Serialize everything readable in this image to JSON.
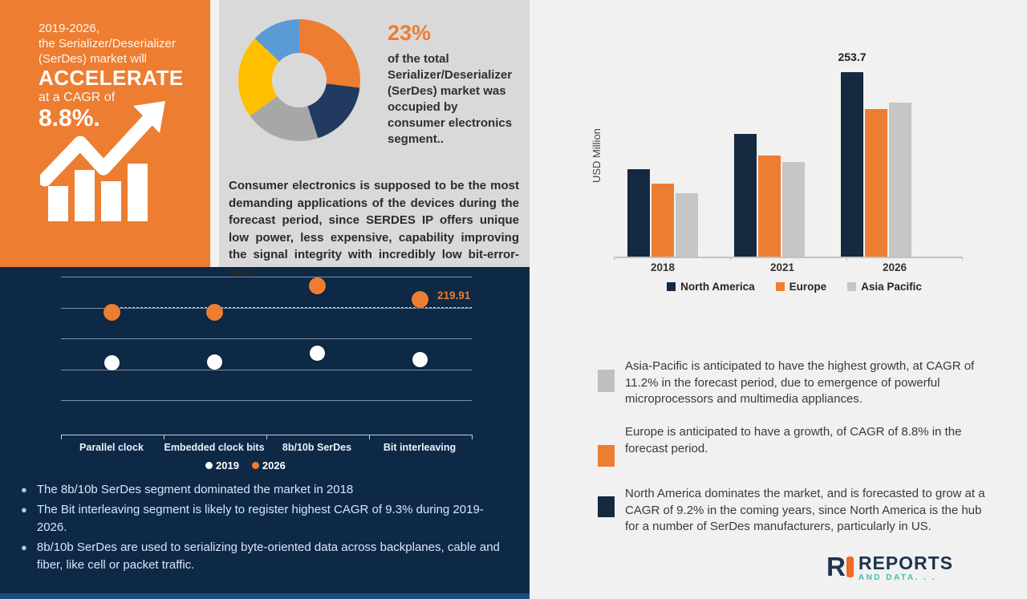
{
  "left_panel": {
    "line1": "2019-2026,",
    "line2": "the Serializer/Deserializer",
    "line3": "(SerDes) market will",
    "emphasis": "ACCELERATE",
    "cagr_prefix": "at a CAGR of",
    "cagr_value": "8.8%.",
    "accent_color": "#ED7D31"
  },
  "stat_box": {
    "value": "23%",
    "caption": "of the total Serializer/Deserializer (SerDes) market was occupied by consumer electronics segment..",
    "body": "Consumer electronics is supposed to be the most demanding applications of the devices during the forecast period, since SERDES IP offers unique low power, less expensive, capability improving the signal integrity with incredibly low bit-error-rate."
  },
  "bullets": [
    "The 8b/10b SerDes segment dominated the market in 2018",
    "The Bit interleaving segment is  likely to register highest CAGR of 9.3% during 2019-2026.",
    "8b/10b SerDes are used to serializing byte-oriented data across backplanes, cable and fiber, like cell or packet traffic."
  ],
  "insights": [
    {
      "color": "#BFBFBF",
      "text": "Asia-Pacific is anticipated to have the highest growth, at CAGR of 11.2% in the forecast period, due to emergence of powerful microprocessors and multimedia appliances."
    },
    {
      "color": "#ED7D31",
      "text": "Europe is anticipated to have a growth, of CAGR of 8.8% in the forecast period."
    },
    {
      "color": "#15293F",
      "text": "North America dominates the market, and is forecasted to grow at a CAGR of 9.2% in the coming years, since North America is the hub for a number of SerDes manufacturers, particularly in US."
    }
  ],
  "logo": {
    "mark": "R",
    "main": "REPORTS",
    "sub": "AND DATA. . ."
  },
  "chart_data": [
    {
      "type": "pie",
      "subtype": "donut",
      "values": [
        27,
        18,
        20,
        22,
        13
      ],
      "colors": [
        "#ED7D31",
        "#223A5F",
        "#A7A7A7",
        "#FFC000",
        "#5B9BD5"
      ],
      "title": "",
      "legend_position": "none"
    },
    {
      "type": "bar",
      "categories": [
        "2018",
        "2021",
        "2026"
      ],
      "series": [
        {
          "name": "North America",
          "color": "#152A40",
          "values": [
            120,
            169,
            253.7
          ]
        },
        {
          "name": "Europe",
          "color": "#ED7D31",
          "values": [
            100,
            139,
            203
          ]
        },
        {
          "name": "Asia Pacific",
          "color": "#C6C6C6",
          "values": [
            87,
            130,
            212
          ]
        }
      ],
      "annotation": "253.7",
      "xlabel": "",
      "ylabel": "USD Million",
      "ylim": [
        0,
        280
      ],
      "grid": false,
      "legend_position": "bottom"
    },
    {
      "type": "scatter",
      "categories": [
        "Parallel clock",
        "Embedded clock bits",
        "8b/10b SerDes",
        "Bit interleaving"
      ],
      "series": [
        {
          "name": "2019",
          "color": "#FFFFFF",
          "values": [
            117,
            118,
            132,
            122
          ]
        },
        {
          "name": "2026",
          "color": "#ED7D31",
          "values": [
            199,
            199,
            241,
            219.91
          ]
        }
      ],
      "annotation": "219.91",
      "xlabel": "",
      "ylabel": "",
      "ylim": [
        0,
        260
      ],
      "grid": true,
      "legend_position": "bottom"
    }
  ]
}
